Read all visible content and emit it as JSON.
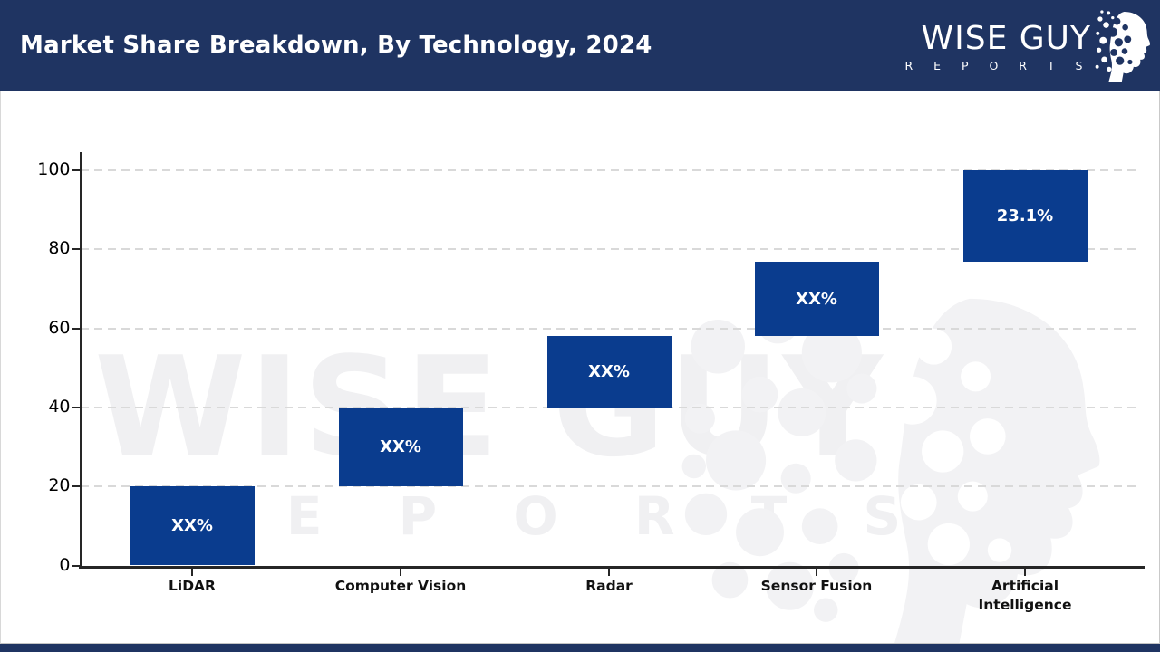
{
  "header": {
    "title": "Market Share Breakdown, By Technology, 2024",
    "logo": {
      "brand_line1": "WISE GUY",
      "brand_line2": "R E P O R T S"
    }
  },
  "watermark": {
    "line1": "WISE GUY",
    "line2": "R E P O R T S"
  },
  "chart_data": {
    "type": "bar",
    "subtype": "waterfall",
    "title": "Market Share Breakdown, By Technology, 2024",
    "categories": [
      "LiDAR",
      "Computer Vision",
      "Radar",
      "Sensor Fusion",
      "Artificial Intelligence"
    ],
    "series": [
      {
        "category": "LiDAR",
        "base": 0,
        "top": 20,
        "segment": 20,
        "label": "XX%"
      },
      {
        "category": "Computer Vision",
        "base": 20,
        "top": 40,
        "segment": 20,
        "label": "XX%"
      },
      {
        "category": "Radar",
        "base": 40,
        "top": 58,
        "segment": 18,
        "label": "XX%"
      },
      {
        "category": "Sensor Fusion",
        "base": 58,
        "top": 76.9,
        "segment": 18.9,
        "label": "XX%"
      },
      {
        "category": "Artificial Intelligence",
        "base": 76.9,
        "top": 100,
        "segment": 23.1,
        "label": "23.1%"
      }
    ],
    "y_ticks": [
      "0",
      "20",
      "40",
      "60",
      "80",
      "100"
    ],
    "ylim": [
      0,
      100
    ],
    "grid": "horizontal-dashed",
    "legend": "none",
    "bar_color": "#0a3c8e",
    "bar_label_color": "#ffffff"
  },
  "colors": {
    "header_bg": "#1f3462",
    "footer_bg": "#1f3462",
    "bar": "#0a3c8e",
    "axis": "#262626",
    "grid": "#d9d9d9",
    "watermark": "#f0f0f2"
  }
}
